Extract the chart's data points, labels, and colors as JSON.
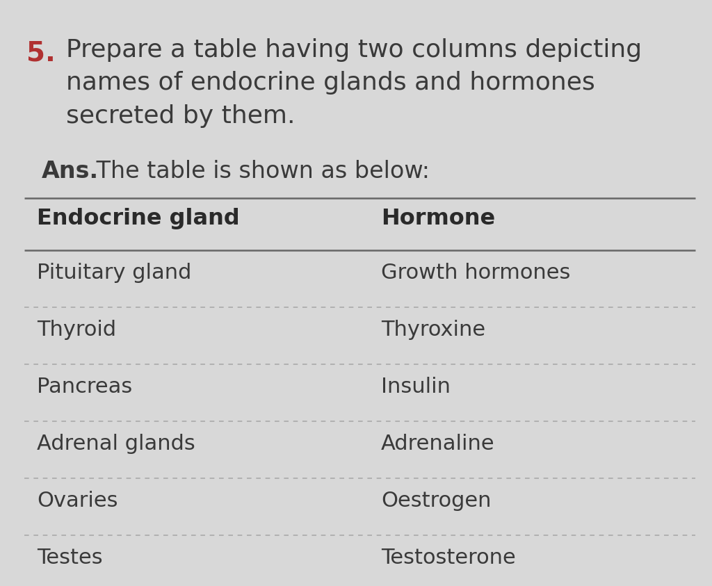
{
  "question_number": "5.",
  "question_text": "Prepare a table having two columns depicting\nnames of endocrine glands and hormones\nsecreted by them.",
  "ans_label": "Ans.",
  "ans_text": " The table is shown as below:",
  "col1_header": "Endocrine gland",
  "col2_header": "Hormone",
  "rows": [
    [
      "Pituitary gland",
      "Growth hormones"
    ],
    [
      "Thyroid",
      "Thyroxine"
    ],
    [
      "Pancreas",
      "Insulin"
    ],
    [
      "Adrenal glands",
      "Adrenaline"
    ],
    [
      "Ovaries",
      "Oestrogen"
    ],
    [
      "Testes",
      "Testosterone"
    ]
  ],
  "bg_color": "#d8d8d8",
  "text_color": "#3a3a3a",
  "header_color": "#2a2a2a",
  "question_num_color": "#b03030",
  "solid_line_color": "#666666",
  "dotted_line_color": "#aaaaaa",
  "fig_width": 10.24,
  "fig_height": 8.43,
  "dpi": 100
}
